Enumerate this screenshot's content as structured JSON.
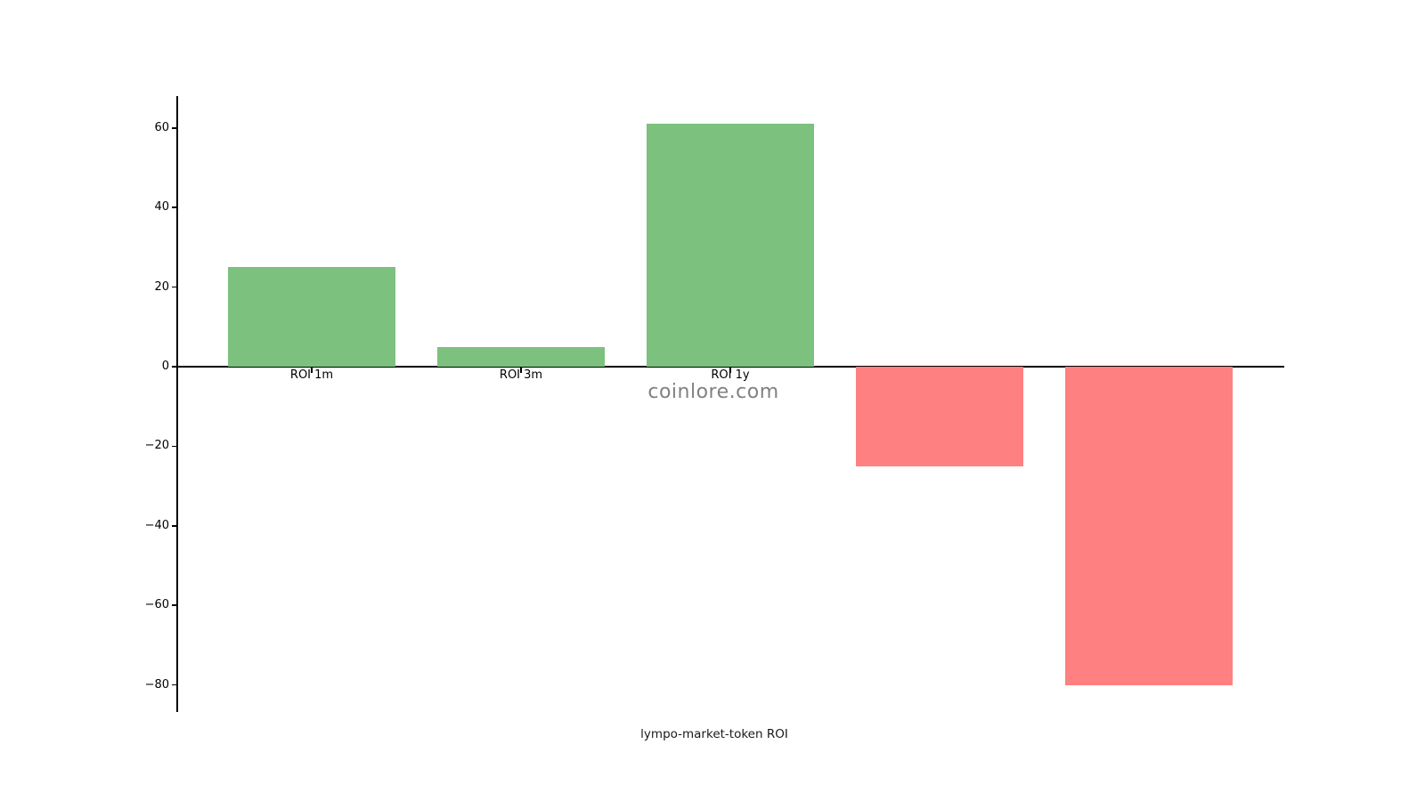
{
  "watermark": "coinlore.com",
  "colors": {
    "positive_bar": "#7cc17d",
    "negative_bar": "#ff8080",
    "axis": "#000000",
    "tick_label": "#000000",
    "watermark_text": "#818181",
    "title_text": "#1a1a1a",
    "background": "#ffffff"
  },
  "chart_data": {
    "type": "bar",
    "title": "lympo-market-token ROI",
    "xlabel": "",
    "ylabel": "",
    "categories": [
      "ROI 1m",
      "ROI 3m",
      "ROI 1y",
      "",
      ""
    ],
    "values": [
      25,
      5,
      61,
      -25,
      -80
    ],
    "bar_colors": [
      "#7cc17d",
      "#7cc17d",
      "#7cc17d",
      "#ff8080",
      "#ff8080"
    ],
    "yticks": [
      60,
      40,
      20,
      0,
      -20,
      -40,
      -60,
      -80
    ],
    "ytick_labels": [
      "60",
      "40",
      "20",
      "0",
      "−20",
      "−40",
      "−60",
      "−80"
    ],
    "ylim": [
      -87,
      68
    ],
    "grid": false,
    "legend": null,
    "annotations": [
      "coinlore.com"
    ]
  }
}
